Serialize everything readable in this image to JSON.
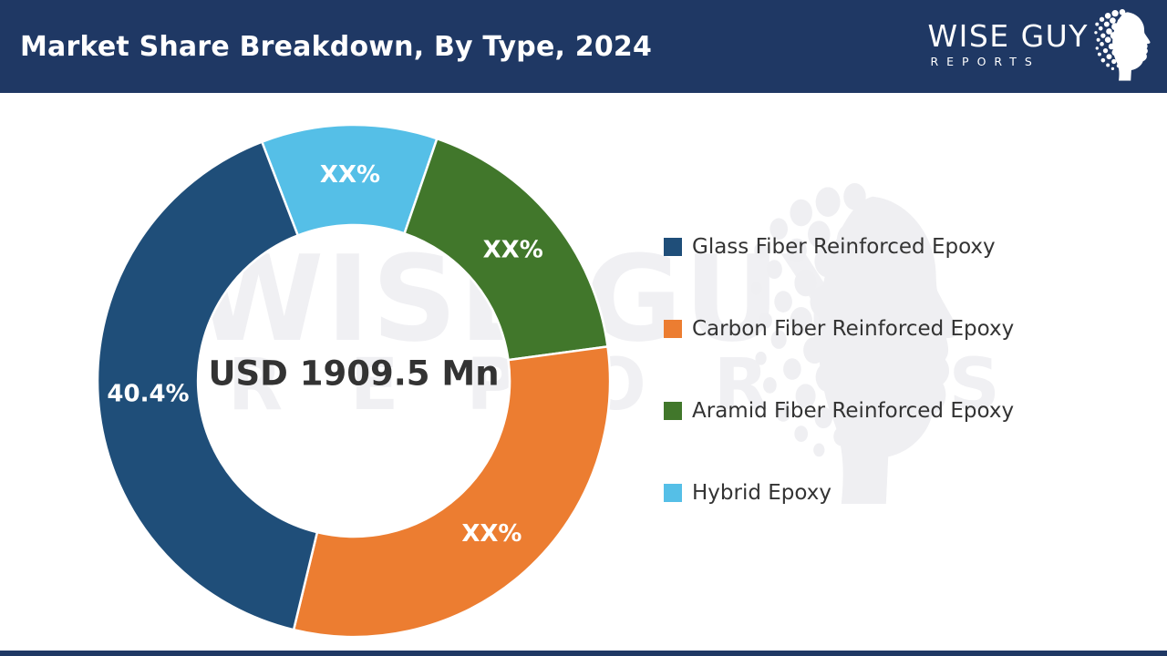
{
  "header": {
    "title": "Market Share Breakdown, By Type, 2024",
    "logo": {
      "line1": "WISE GUY",
      "line2": "REPORTS"
    }
  },
  "watermark": {
    "row1": "WISE GUY",
    "row2": "REPORTS"
  },
  "colors": {
    "header_bg": "#1F3864",
    "footer_bg": "#1F3864",
    "center_text": "#333333",
    "legend_text": "#333333",
    "watermark": "#f0f0f3",
    "separator": "#ffffff"
  },
  "chart_data": {
    "type": "pie",
    "subtype": "donut",
    "title": "Market Share Breakdown, By Type, 2024",
    "center_label": "USD 1909.5 Mn",
    "legend_position": "right",
    "start_angle_deg": 111,
    "direction": "counterclockwise",
    "segments": [
      {
        "label": "Glass Fiber Reinforced Epoxy",
        "value_pct": 40.4,
        "display": "40.4%",
        "color": "#1F4E79"
      },
      {
        "label": "Carbon Fiber Reinforced Epoxy",
        "value_pct": 30.9,
        "display": "XX%",
        "color": "#EC7D31"
      },
      {
        "label": "Aramid Fiber Reinforced Epoxy",
        "value_pct": 17.6,
        "display": "XX%",
        "color": "#41772B"
      },
      {
        "label": "Hybrid Epoxy",
        "value_pct": 11.1,
        "display": "XX%",
        "color": "#55BFE7"
      }
    ],
    "values_note": "Only 40.4% is shown numerically; other segment labels are masked as XX% in the image, their value_pct are estimated from arc angles"
  }
}
